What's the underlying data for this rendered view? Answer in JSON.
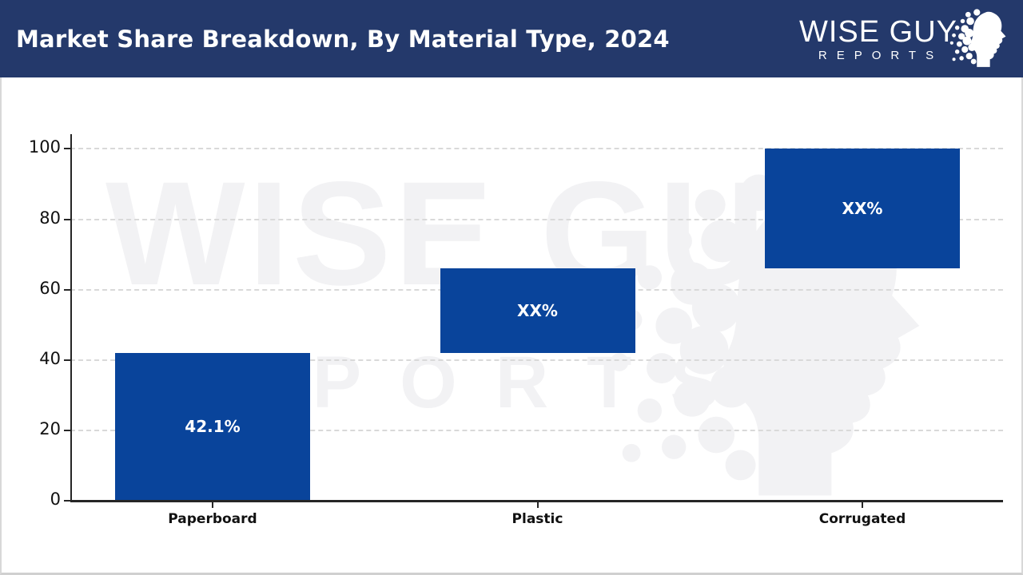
{
  "header": {
    "title": "Market Share Breakdown, By Material Type, 2024",
    "background_color": "#24396b"
  },
  "logo": {
    "line1": "WISE GUY",
    "line2": "REPORTS",
    "icon": "dotted-head-profile-icon",
    "color": "#ffffff"
  },
  "watermark": {
    "line1": "WISE GUY",
    "line2": "REPORTS",
    "icon": "dotted-head-profile-icon",
    "color": "#f2f2f4"
  },
  "colors": {
    "bar_fill": "#09449b",
    "bar_label_text": "#ffffff",
    "axis": "#262626",
    "gridline": "#d9d9d9",
    "tick_label_text": "#111111",
    "header_background": "#24396b",
    "header_text": "#ffffff"
  },
  "chart_data": {
    "type": "bar",
    "subtype": "floating-segment-waterfall",
    "title": "Market Share Breakdown, By Material Type, 2024",
    "categories": [
      "Paperboard",
      "Plastic",
      "Corrugated"
    ],
    "series": [
      {
        "name": "Market share (%)",
        "segments": [
          {
            "category": "Paperboard",
            "start": 0,
            "end": 42.1,
            "label": "42.1%"
          },
          {
            "category": "Plastic",
            "start": 42.1,
            "end": 66.0,
            "label": "XX%"
          },
          {
            "category": "Corrugated",
            "start": 66.0,
            "end": 100.0,
            "label": "XX%"
          }
        ]
      }
    ],
    "xlabel": "",
    "ylabel": "",
    "ylim": [
      0,
      104.5
    ],
    "yticks": [
      0,
      20,
      40,
      60,
      80,
      100
    ],
    "grid": "horizontal-dashed",
    "legend": "none"
  }
}
